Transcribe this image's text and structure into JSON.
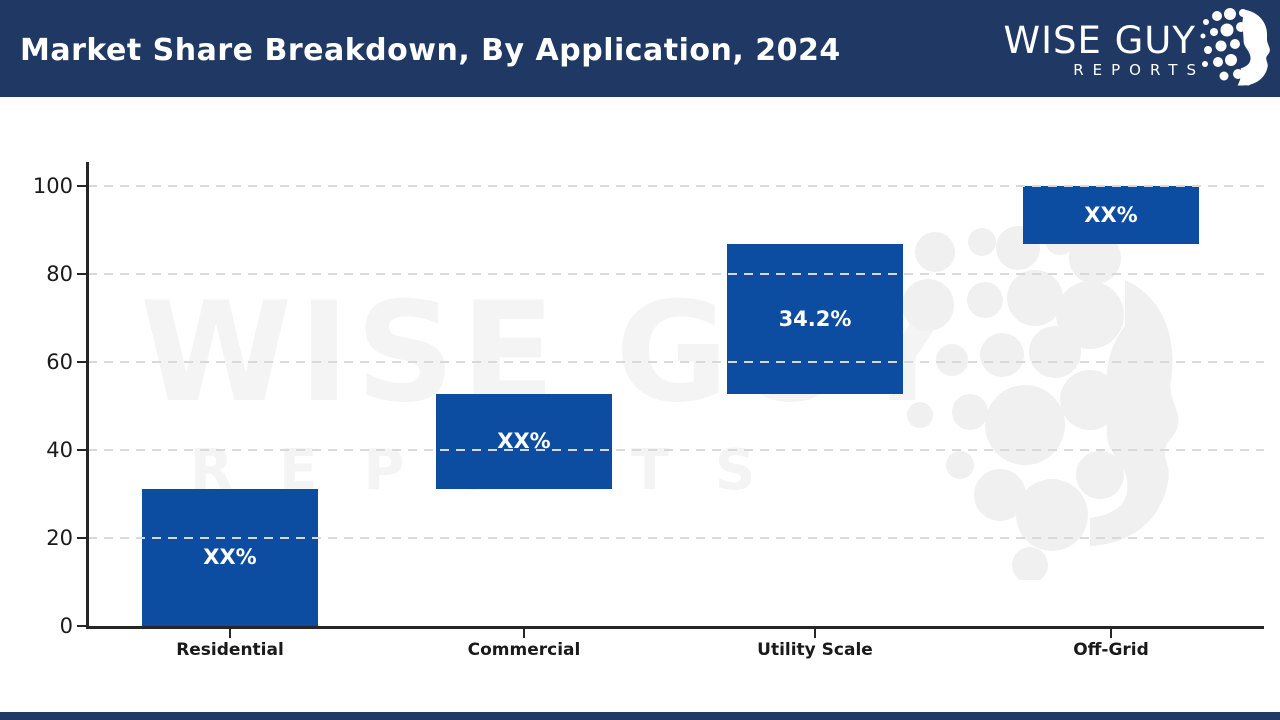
{
  "header": {
    "title": "Market Share Breakdown, By Application, 2024",
    "logo_line1": "WISE GUY",
    "logo_line2": "REPORTS",
    "bg_color": "#1f3864"
  },
  "watermark": {
    "line1": "WISE GUY",
    "line2": "REPORTS"
  },
  "footer": {
    "bg_color": "#1f3864"
  },
  "chart_data": {
    "type": "bar",
    "subtype": "waterfall",
    "title": "Market Share Breakdown, By Application, 2024",
    "xlabel": "",
    "ylabel": "",
    "categories": [
      "Residential",
      "Commercial",
      "Utility Scale",
      "Off-Grid"
    ],
    "segments": [
      {
        "category": "Residential",
        "start": 0,
        "end": 31.2,
        "label": "XX%"
      },
      {
        "category": "Commercial",
        "start": 31.2,
        "end": 52.7,
        "label": "XX%"
      },
      {
        "category": "Utility Scale",
        "start": 52.7,
        "end": 86.9,
        "label": "34.2%"
      },
      {
        "category": "Off-Grid",
        "start": 86.9,
        "end": 100,
        "label": "XX%"
      }
    ],
    "yticks": [
      0,
      20,
      40,
      60,
      80,
      100
    ],
    "ylim": [
      0,
      105
    ],
    "grid": "dashed-horizontal",
    "legend": "none",
    "bar_color": "#0d4da1",
    "axis_color": "#262626",
    "grid_color": "#d9d9d9"
  }
}
